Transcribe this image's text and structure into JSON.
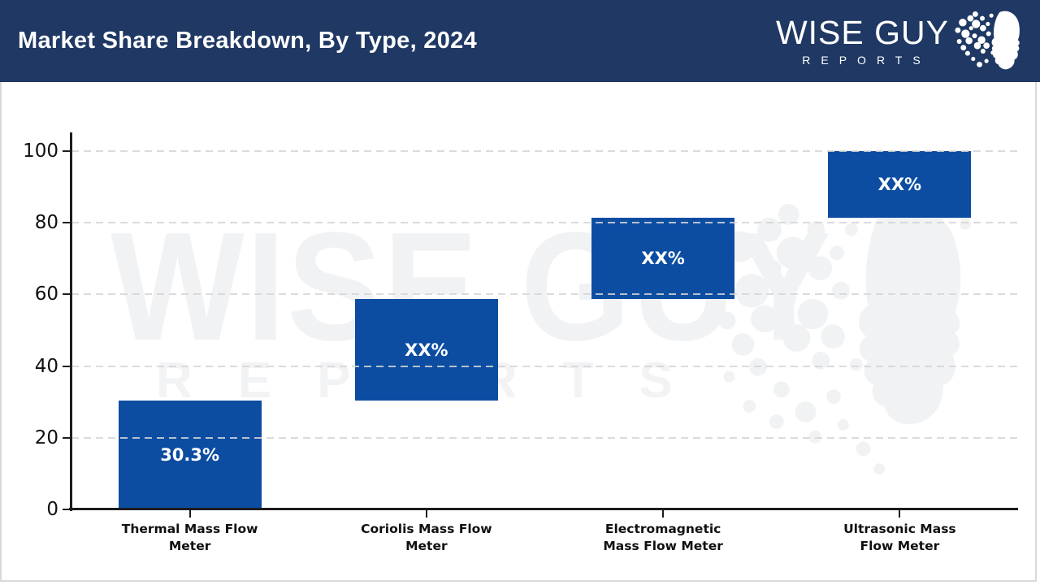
{
  "header": {
    "title": "Market Share Breakdown, By Type, 2024",
    "logo": {
      "brand": "WISE GUY",
      "sub": "REPORTS"
    }
  },
  "watermark": {
    "brand": "WISE GUY",
    "sub": "REPORTS"
  },
  "colors": {
    "header_bg": "#1f3864",
    "bar": "#0c4da2",
    "value_label": "#ffffff",
    "watermark": "#f1f2f4",
    "axis": "#1d1d1d",
    "grid": "#d5d5d5",
    "tick_text": "#101010",
    "title_text": "#ffffff"
  },
  "chart_data": {
    "type": "bar",
    "subtype": "waterfall-percent-of-total",
    "title": "Market Share Breakdown, By Type, 2024",
    "categories": [
      "Thermal Mass Flow Meter",
      "Coriolis Mass Flow Meter",
      "Electromagnetic Mass Flow Meter",
      "Ultrasonic Mass Flow Meter"
    ],
    "tick_labels": [
      [
        "Thermal Mass Flow",
        "Meter"
      ],
      [
        "Coriolis Mass Flow",
        "Meter"
      ],
      [
        "Electromagnetic",
        "Mass Flow Meter"
      ],
      [
        "Ultrasonic Mass",
        "Flow Meter"
      ]
    ],
    "segments": [
      {
        "category": "Thermal Mass Flow Meter",
        "start": 0,
        "end": 30.3,
        "value_label": "30.3%"
      },
      {
        "category": "Coriolis Mass Flow Meter",
        "start": 30.3,
        "end": 58.8,
        "value_label": "XX%"
      },
      {
        "category": "Electromagnetic Mass Flow Meter",
        "start": 58.8,
        "end": 81.4,
        "value_label": "XX%"
      },
      {
        "category": "Ultrasonic Mass Flow Meter",
        "start": 81.4,
        "end": 100,
        "value_label": "XX%"
      }
    ],
    "xlabel": "",
    "ylabel": "",
    "ylim": [
      0,
      100
    ],
    "yticks": [
      0,
      20,
      40,
      60,
      80,
      100
    ],
    "grid": "horizontal-dashed",
    "legend": "none"
  }
}
